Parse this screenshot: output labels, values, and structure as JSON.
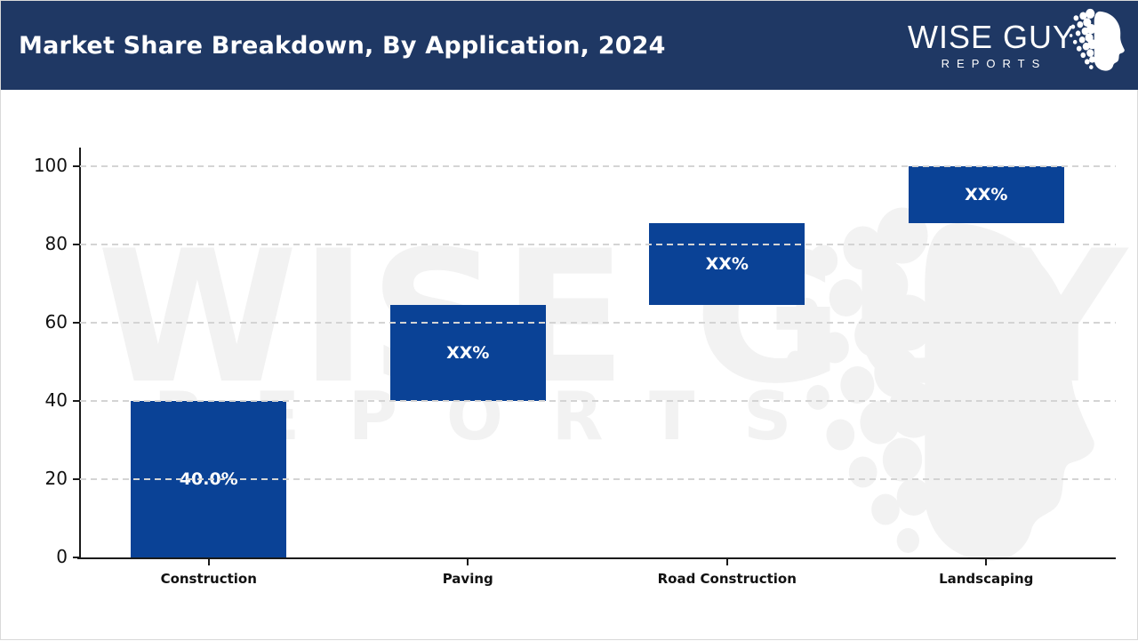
{
  "header": {
    "title": "Market Share Breakdown, By Application, 2024"
  },
  "logo": {
    "wordmark": "WISE GUY",
    "subtext": "REPORTS"
  },
  "watermark": {
    "line1": "WISE GUY",
    "line2": "REPORTS"
  },
  "chart_data": {
    "type": "bar",
    "subtype": "waterfall",
    "title": "Market Share Breakdown, By Application, 2024",
    "categories": [
      "Construction",
      "Paving",
      "Road Construction",
      "Landscaping"
    ],
    "series": [
      {
        "name": "Market share (%)",
        "segments": [
          {
            "category": "Construction",
            "start": 0,
            "end": 40,
            "value": 40.0,
            "label": "40.0%"
          },
          {
            "category": "Paving",
            "start": 40,
            "end": 64.5,
            "value": 24.5,
            "label": "XX%"
          },
          {
            "category": "Road Construction",
            "start": 64.5,
            "end": 85.5,
            "value": 21.0,
            "label": "XX%"
          },
          {
            "category": "Landscaping",
            "start": 85.5,
            "end": 100,
            "value": 14.5,
            "label": "XX%"
          }
        ]
      }
    ],
    "xlabel": "",
    "ylabel": "",
    "ylim": [
      0,
      105
    ],
    "yticks": [
      0,
      20,
      40,
      60,
      80,
      100
    ],
    "grid": "horizontal-dashed",
    "legend": "none",
    "colors": {
      "bar": "#0a4296",
      "bar_label": "#ffffff",
      "grid": "#d4d4d4",
      "axis": "#1a1a1a",
      "header_bg": "#1f3864",
      "watermark": "#f2f2f2"
    }
  }
}
